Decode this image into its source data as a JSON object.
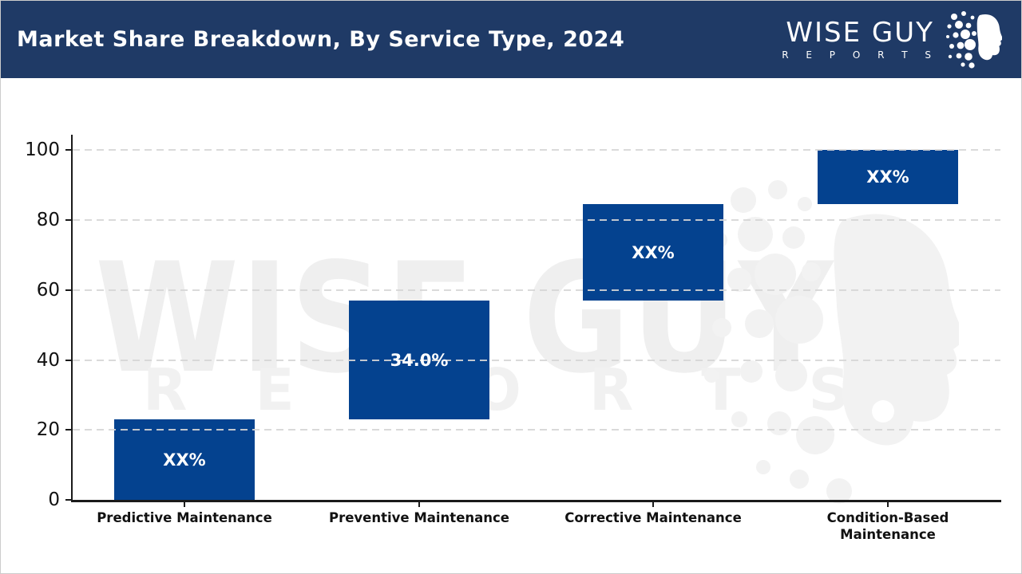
{
  "header": {
    "title": "Market Share Breakdown, By Service Type, 2024",
    "bg_color": "#1F3A66",
    "logo": {
      "line1": "WISE GUY",
      "line2": "R E P O R T S"
    }
  },
  "watermark": {
    "line1": "WISE GUY",
    "line2": "R E P O R T S"
  },
  "chart_data": {
    "type": "bar",
    "variant": "floating-waterfall",
    "title": "Market Share Breakdown, By Service Type, 2024",
    "categories": [
      "Predictive Maintenance",
      "Preventive Maintenance",
      "Corrective Maintenance",
      "Condition-Based Maintenance"
    ],
    "bars": [
      {
        "category": "Predictive Maintenance",
        "start": 0,
        "end": 23,
        "label": "XX%"
      },
      {
        "category": "Preventive Maintenance",
        "start": 23,
        "end": 57,
        "label": "34.0%",
        "value": 34.0
      },
      {
        "category": "Corrective Maintenance",
        "start": 57,
        "end": 84.5,
        "label": "XX%"
      },
      {
        "category": "Condition-Based Maintenance",
        "start": 84.5,
        "end": 100,
        "label": "XX%"
      }
    ],
    "xlabel": "",
    "ylabel": "",
    "y_ticks": [
      0,
      20,
      40,
      60,
      80,
      100
    ],
    "ylim": [
      0,
      104
    ],
    "grid": "horizontal-dashed",
    "legend_position": "none",
    "bar_color": "#04428F",
    "gridline_color": "#D6D6D6",
    "watermark_color": "#EFEFEF"
  }
}
